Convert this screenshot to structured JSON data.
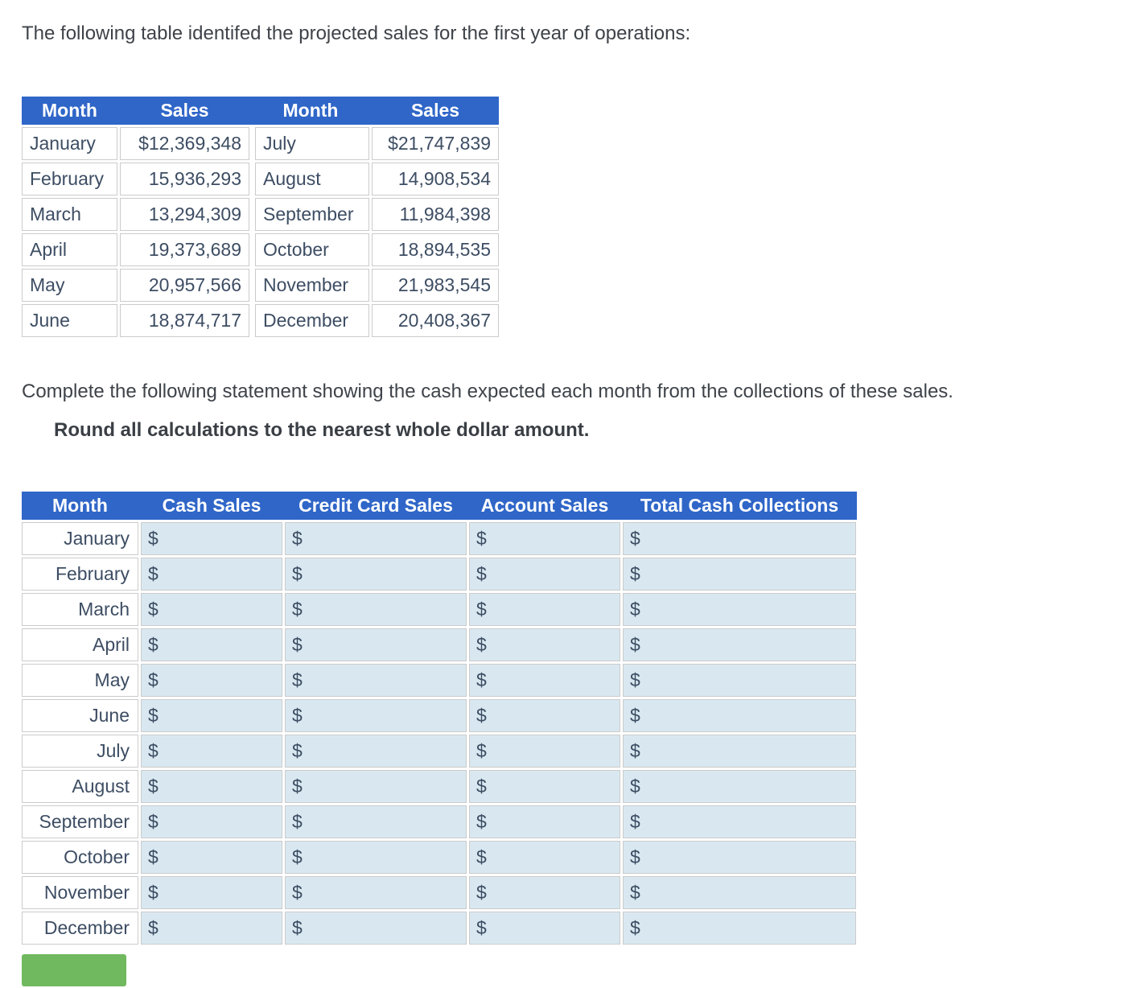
{
  "intro_text": "The following table identifed the projected sales for the first year of operations:",
  "instruction_text": "Complete the following statement showing the cash expected each month from the collections of these sales.",
  "rounding_note": "Round all calculations to the nearest whole dollar amount.",
  "sales_table": {
    "headers": [
      "Month",
      "Sales",
      "Month",
      "Sales"
    ],
    "rows": [
      [
        "January",
        "$12,369,348",
        "July",
        "$21,747,839"
      ],
      [
        "February",
        "15,936,293",
        "August",
        "14,908,534"
      ],
      [
        "March",
        "13,294,309",
        "September",
        "11,984,398"
      ],
      [
        "April",
        "19,373,689",
        "October",
        "18,894,535"
      ],
      [
        "May",
        "20,957,566",
        "November",
        "21,983,545"
      ],
      [
        "June",
        "18,874,717",
        "December",
        "20,408,367"
      ]
    ]
  },
  "collections_table": {
    "headers": [
      "Month",
      "Cash Sales",
      "Credit Card Sales",
      "Account Sales",
      "Total Cash Collections"
    ],
    "months": [
      "January",
      "February",
      "March",
      "April",
      "May",
      "June",
      "July",
      "August",
      "September",
      "October",
      "November",
      "December"
    ],
    "currency_symbol": "$",
    "input_value": ""
  },
  "colors": {
    "header_blue": "#2f66c8",
    "input_cell_blue": "#d9e8f0",
    "button_green": "#70b95f"
  }
}
